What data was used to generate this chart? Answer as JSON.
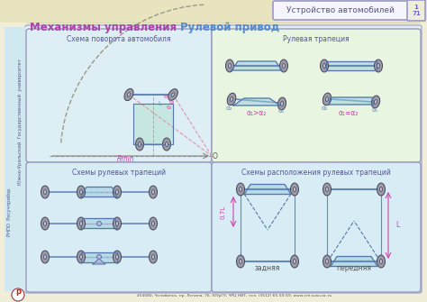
{
  "title_main_left": "Механизмы управления",
  "title_main_right": "Рулевой привод",
  "title_top_right": "Устройство автомобилей",
  "page_num_1": "1",
  "page_num_2": "71",
  "bg_top": "#f0edd8",
  "bg_main": "#e2f0f5",
  "bg_left_strip": "#d0e8f0",
  "border_color": "#9999bb",
  "title_left_color": "#aa44aa",
  "title_right_color": "#5588cc",
  "subtitle_color": "#555599",
  "box_bg1": "#ddeef5",
  "box_bg2": "#e8f5e0",
  "box_bg3": "#d8ecf5",
  "box_bg4": "#d8ecf5",
  "wheel_color": "#999aaa",
  "wheel_edge": "#555566",
  "axle_color": "#6688bb",
  "trap_fill": "#99ccdd",
  "trap_edge": "#5577aa",
  "arc_color": "#bbbb99",
  "pink_color": "#dd44aa",
  "green_fill": "#aaddcc",
  "badge_bg": "#f5f5ff",
  "badge_border": "#9999cc",
  "box1_title": "Схема поворота автомобиля",
  "box2_title": "Рулевая трапеция",
  "box3_title": "Схемы рулевых трапеций",
  "box4_title": "Схемы расположения рулевых трапеций",
  "footer_text": "454080, Челябинск, пр. Ленина, 76, ЮУрГУ, ЧРЦ НИТ, тел. (3512) 65-59-59, www.crit.susu.ac.ru",
  "label_rmin": "Rmin",
  "label_o": "O",
  "label_alpha1_gt": "α₁>α₂",
  "label_alpha1_eq": "α₁=α₂",
  "label_zadnyaya": "задняя",
  "label_perednyaya": "передняя",
  "vert_text1": "Южно-Уральский  Государственный  университет",
  "vert_text2": "РНПО  Росучприбор"
}
